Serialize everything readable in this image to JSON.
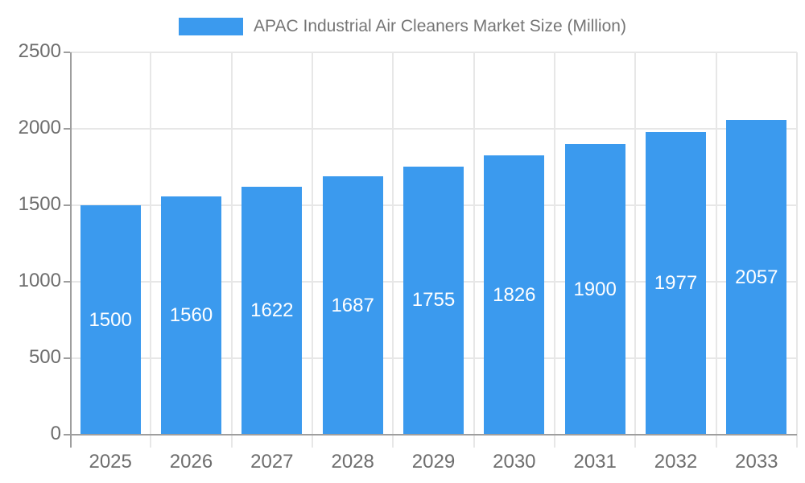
{
  "legend": {
    "label": "APAC Industrial Air Cleaners Market Size (Million)"
  },
  "chart_data": {
    "type": "bar",
    "title": "APAC Industrial Air Cleaners Market Size (Million)",
    "categories": [
      "2025",
      "2026",
      "2027",
      "2028",
      "2029",
      "2030",
      "2031",
      "2032",
      "2033"
    ],
    "values": [
      1500,
      1560,
      1622,
      1687,
      1755,
      1826,
      1900,
      1977,
      2057
    ],
    "bar_value_labels": [
      "1500",
      "1560",
      "1622",
      "1687",
      "1755",
      "1826",
      "1900",
      "1977",
      "2057"
    ],
    "xlabel": "",
    "ylabel": "",
    "ylim": [
      0,
      2500
    ],
    "yticks": [
      0,
      500,
      1000,
      1500,
      2000,
      2500
    ],
    "ytick_labels": [
      "0",
      "500",
      "1000",
      "1500",
      "2000",
      "2500"
    ],
    "grid": true,
    "legend_position": "top",
    "colors": {
      "bar_fill": "#3B9AEE",
      "bar_label_text": "#FFFFFF",
      "gridline": "#E7E7E7",
      "axis_line": "#9E9E9E",
      "tick_label_text": "#6E6E6E",
      "legend_text": "#757575",
      "background": "#FFFFFF"
    }
  }
}
